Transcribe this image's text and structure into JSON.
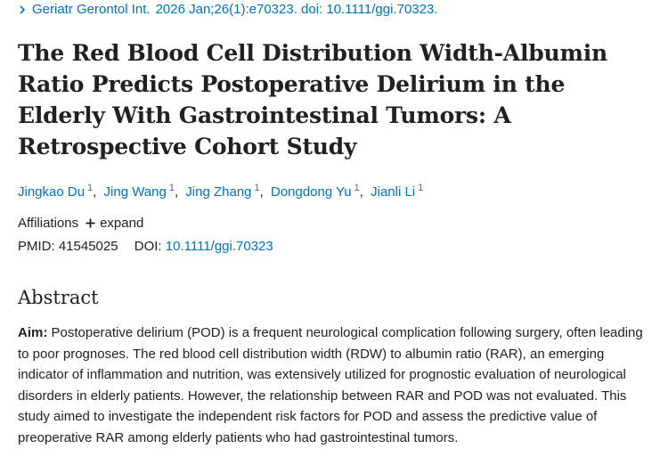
{
  "citation": {
    "journal": "Geriatr Gerontol Int.",
    "details": "2026 Jan;26(1):e70323. doi: 10.1111/ggi.70323."
  },
  "article": {
    "title": "The Red Blood Cell Distribution Width-Albumin Ratio Predicts Postoperative Delirium in the Elderly With Gastrointestinal Tumors: A Retrospective Cohort Study"
  },
  "authors": [
    {
      "name": "Jingkao Du",
      "aff": "1"
    },
    {
      "name": "Jing Wang",
      "aff": "1"
    },
    {
      "name": "Jing Zhang",
      "aff": "1"
    },
    {
      "name": "Dongdong Yu",
      "aff": "1"
    },
    {
      "name": "Jianli Li",
      "aff": "1"
    }
  ],
  "affiliations": {
    "label": "Affiliations",
    "expand_label": "expand"
  },
  "identifiers": {
    "pmid_label": "PMID:",
    "pmid": "41545025",
    "doi_label": "DOI:",
    "doi": "10.1111/ggi.70323"
  },
  "abstract": {
    "heading": "Abstract",
    "aim_label": "Aim:",
    "aim_text": "Postoperative delirium (POD) is a frequent neurological complication following surgery, often leading to poor prognoses. The red blood cell distribution width (RDW) to albumin ratio (RAR), an emerging indicator of inflammation and nutrition, was extensively utilized for prognostic evaluation of neurological disorders in elderly patients. However, the relationship between RAR and POD was not evaluated. This study aimed to investigate the independent risk factors for POD and assess the predictive value of preoperative RAR among elderly patients who had gastrointestinal tumors."
  },
  "colors": {
    "link": "#0071bc",
    "text": "#212121"
  }
}
